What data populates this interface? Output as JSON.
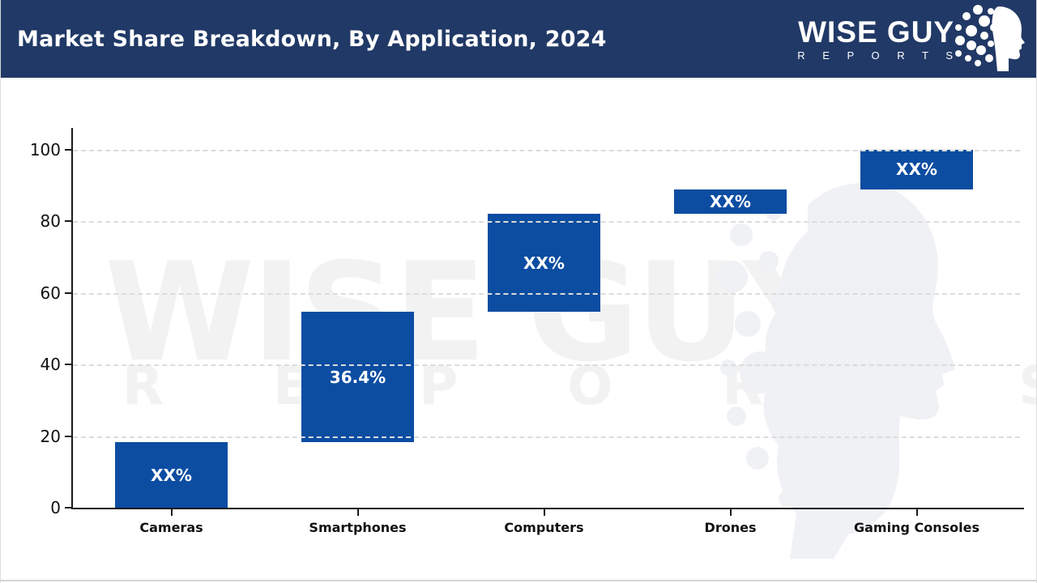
{
  "header": {
    "title": "Market Share Breakdown, By Application, 2024",
    "logo": {
      "line1": "WISE GUY",
      "line2": "R E P O R T S"
    }
  },
  "watermark": {
    "line1": "WISE GUY",
    "line2": "R E P O R T S"
  },
  "colors": {
    "header_bg": "#213966",
    "bar": "#0c4da2",
    "bar_label": "#ffffff",
    "grid": "#dcdcdc",
    "axis": "#1a1a1a",
    "tick_label": "#111111",
    "watermark": "#f2f2f2"
  },
  "chart_data": {
    "type": "bar",
    "subtype": "waterfall",
    "title": "Market Share Breakdown, By Application, 2024",
    "categories": [
      "Cameras",
      "Smartphones",
      "Computers",
      "Drones",
      "Gaming Consoles"
    ],
    "segments": [
      {
        "category": "Cameras",
        "start": 0,
        "end": 18.3,
        "label": "XX%"
      },
      {
        "category": "Smartphones",
        "start": 18.3,
        "end": 54.7,
        "label": "36.4%"
      },
      {
        "category": "Computers",
        "start": 54.7,
        "end": 82.0,
        "label": "XX%"
      },
      {
        "category": "Drones",
        "start": 82.0,
        "end": 88.9,
        "label": "XX%"
      },
      {
        "category": "Gaming Consoles",
        "start": 88.9,
        "end": 100,
        "label": "XX%"
      }
    ],
    "yticks": [
      0,
      20,
      40,
      60,
      80,
      100
    ],
    "ylim": [
      0,
      105
    ],
    "xlabel": "",
    "ylabel": "",
    "grid": "dashed-horizontal",
    "gridlines_above_bars": true,
    "legend": "none",
    "bar_value_labels_inside": true
  }
}
